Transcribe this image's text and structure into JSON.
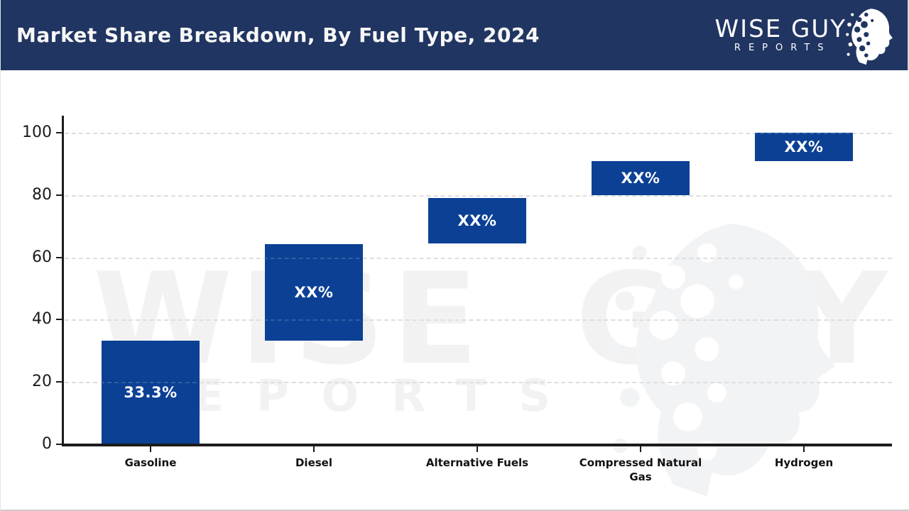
{
  "header": {
    "title": "Market Share Breakdown, By Fuel Type, 2024",
    "background": "#203561",
    "logo": {
      "line1": "WISE GUY",
      "line2": "REPORTS"
    }
  },
  "watermark": {
    "line1": "WISE GUY",
    "line2": "REPORTS"
  },
  "chart_data": {
    "type": "bar",
    "subtype": "waterfall",
    "title": "Market Share Breakdown, By Fuel Type, 2024",
    "xlabel": "",
    "ylabel": "",
    "categories": [
      "Gasoline",
      "Diesel",
      "Alternative Fuels",
      "Compressed Natural Gas",
      "Hydrogen"
    ],
    "segments": [
      {
        "category": "Gasoline",
        "start": 0,
        "end": 33.3,
        "value_label": "33.3%"
      },
      {
        "category": "Diesel",
        "start": 33.3,
        "end": 64.2,
        "value_label": "XX%"
      },
      {
        "category": "Alternative Fuels",
        "start": 64.4,
        "end": 79.1,
        "value_label": "XX%"
      },
      {
        "category": "Compressed Natural Gas",
        "start": 80.0,
        "end": 90.9,
        "value_label": "XX%"
      },
      {
        "category": "Hydrogen",
        "start": 91.0,
        "end": 100.0,
        "value_label": "XX%"
      }
    ],
    "yticks": [
      0,
      20,
      40,
      60,
      80,
      100
    ],
    "ylim": [
      0,
      105
    ],
    "grid": "horizontal dashed",
    "legend": "none",
    "bar_color": "#0B4094",
    "bar_label_color": "#FFFFFF",
    "gridline_color": "#D8D8D8",
    "axis_color": "#1C1C1C"
  }
}
